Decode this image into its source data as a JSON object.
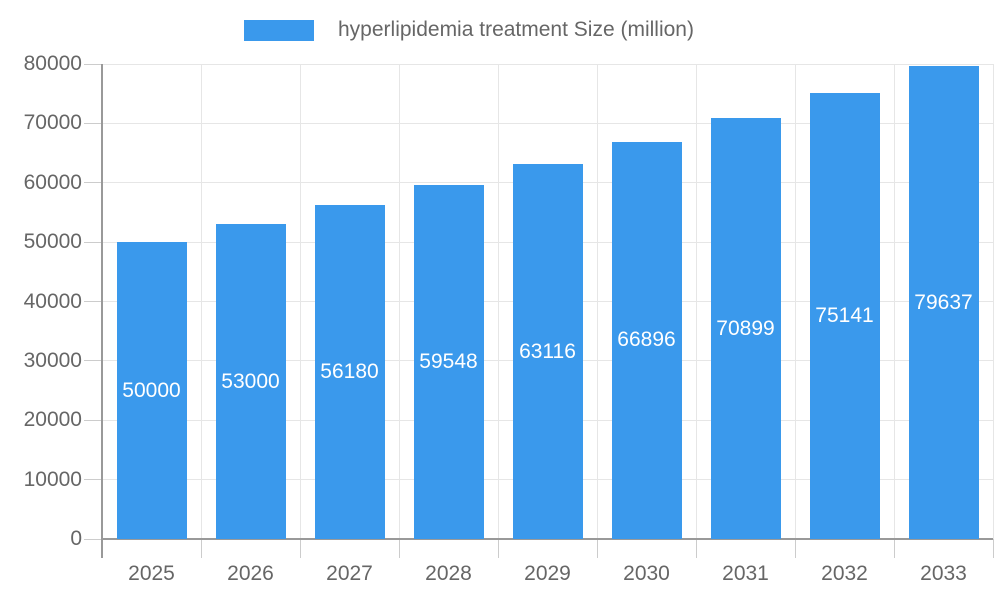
{
  "chart_data": {
    "type": "bar",
    "title": "hyperlipidemia treatment Size (million)",
    "legend": {
      "label": "hyperlipidemia treatment Size (million)",
      "position": "top-center"
    },
    "categories": [
      "2025",
      "2026",
      "2027",
      "2028",
      "2029",
      "2030",
      "2031",
      "2032",
      "2033"
    ],
    "series": [
      {
        "name": "hyperlipidemia treatment Size (million)",
        "values": [
          50000,
          53000,
          56180,
          59548,
          63116,
          66896,
          70899,
          75141,
          79637
        ]
      }
    ],
    "value_labels": [
      "50000",
      "53000",
      "56180",
      "59548",
      "63116",
      "66896",
      "70899",
      "75141",
      "79637"
    ],
    "xlabel": "",
    "ylabel": "",
    "ylim": [
      0,
      80000
    ],
    "ytick_interval": 10000,
    "ytick_labels": [
      "0",
      "10000",
      "20000",
      "30000",
      "40000",
      "50000",
      "60000",
      "70000",
      "80000"
    ],
    "grid": true,
    "colors": {
      "bar": "#3a99ec",
      "gridline": "#e6e6e6",
      "tick": "#cccccc",
      "axis": "#999999",
      "text": "#666666",
      "value_label": "#ffffff"
    }
  }
}
